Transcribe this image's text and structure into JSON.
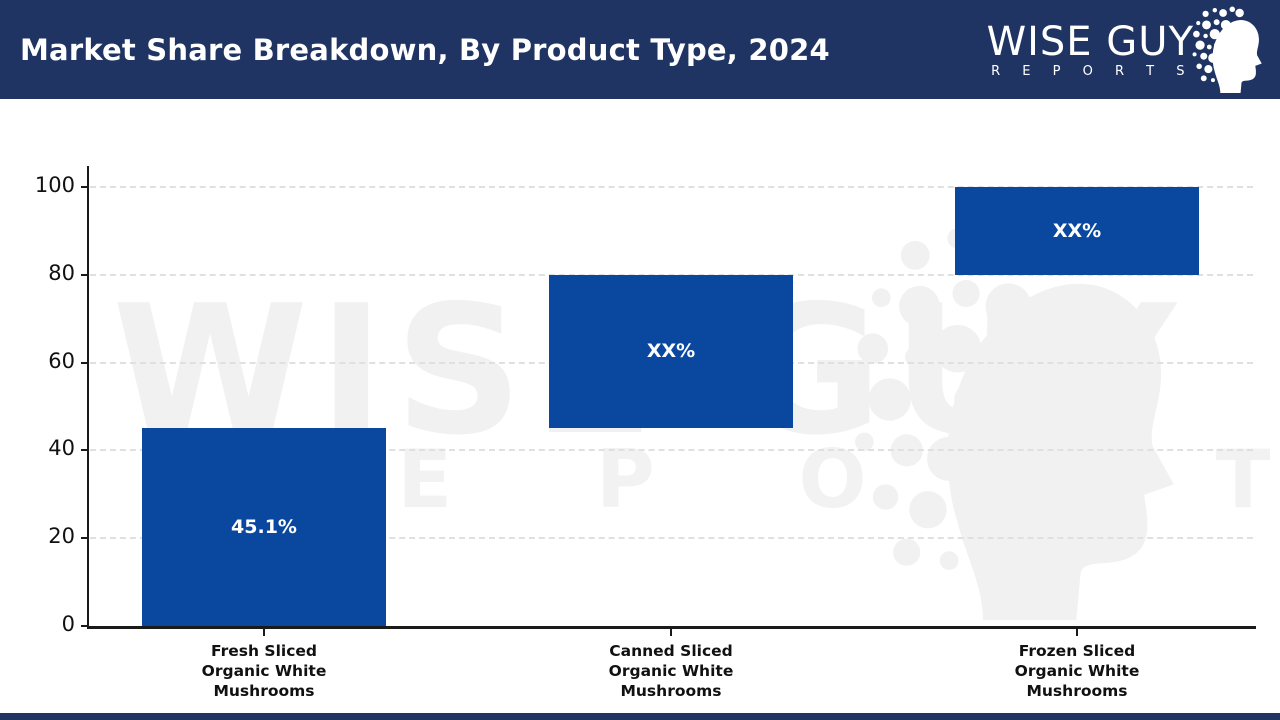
{
  "header": {
    "title": "Market Share Breakdown, By Product Type, 2024"
  },
  "logo": {
    "name_top": "WISE GUY",
    "name_bottom": "R E P O R T S"
  },
  "watermark": {
    "line1": "WISE GUY",
    "line2": "R E P O R T S"
  },
  "chart_data": {
    "type": "bar",
    "variant": "waterfall-stacked-share",
    "title": "Market Share Breakdown, By Product Type, 2024",
    "categories": [
      "Fresh Sliced Organic White Mushrooms",
      "Canned Sliced Organic White Mushrooms",
      "Frozen Sliced Organic White Mushrooms"
    ],
    "category_lines": [
      [
        "Fresh Sliced",
        "Organic White",
        "Mushrooms"
      ],
      [
        "Canned Sliced",
        "Organic White",
        "Mushrooms"
      ],
      [
        "Frozen Sliced",
        "Organic White",
        "Mushrooms"
      ]
    ],
    "segments": [
      {
        "start": 0,
        "end": 45.1,
        "label": "45.1%"
      },
      {
        "start": 45.1,
        "end": 80,
        "label": "XX%"
      },
      {
        "start": 80,
        "end": 100,
        "label": "XX%"
      }
    ],
    "ylim": [
      0,
      100
    ],
    "yticks": [
      0,
      20,
      40,
      60,
      80,
      100
    ],
    "grid": "horizontal-dashed",
    "legend": null,
    "bar_color": "#0a48a0",
    "bar_label_color": "#ffffff",
    "axis_color": "#1a1a1a",
    "gridline_color": "#e0e0e0",
    "header_color": "#203464",
    "watermark_color": "#f1f1f1"
  }
}
